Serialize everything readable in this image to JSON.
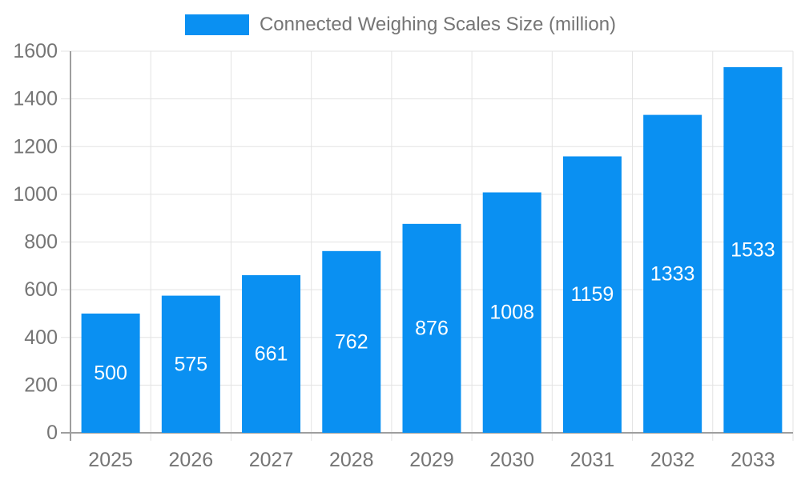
{
  "chart_data": {
    "type": "bar",
    "title": "Connected Weighing Scales Size (million)",
    "categories": [
      "2025",
      "2026",
      "2027",
      "2028",
      "2029",
      "2030",
      "2031",
      "2032",
      "2033"
    ],
    "values": [
      500,
      575,
      661,
      762,
      876,
      1008,
      1159,
      1333,
      1533
    ],
    "xlabel": "",
    "ylabel": "",
    "ylim": [
      0,
      1600
    ],
    "ytick_step": 200,
    "ytick_labels": [
      "0",
      "200",
      "400",
      "600",
      "800",
      "1000",
      "1200",
      "1400",
      "1600"
    ],
    "grid": true,
    "legend_position": "top",
    "bar_labels_inside": true,
    "bar_color": "#0A90F2",
    "bar_label_color": "#FFFFFF",
    "text_color": "#757575",
    "axis_color": "#9E9E9E",
    "grid_color": "#E3E3E3"
  }
}
